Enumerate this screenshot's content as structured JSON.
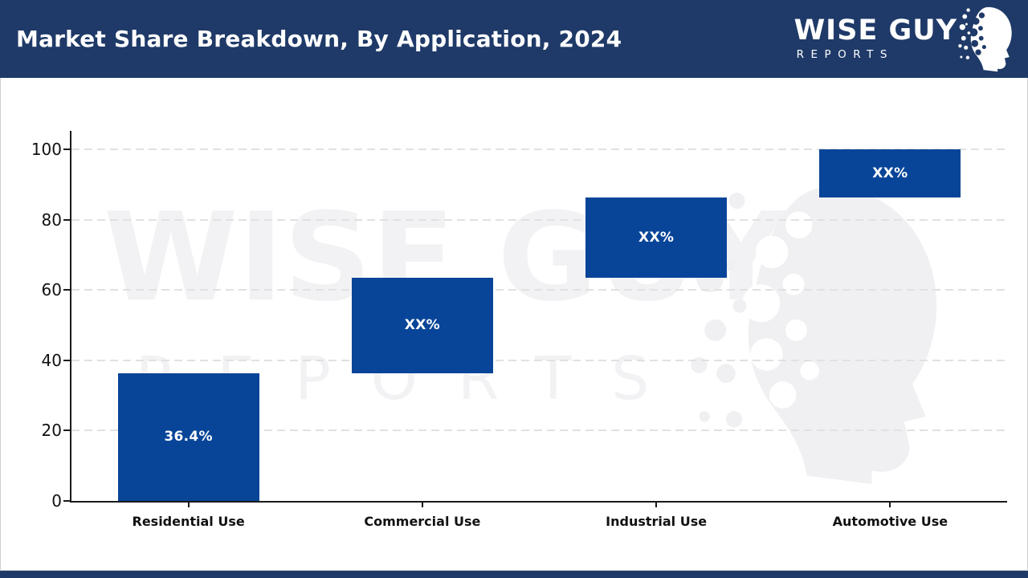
{
  "header": {
    "title": "Market Share Breakdown, By Application, 2024",
    "bg_color": "#1f3a68",
    "logo": {
      "line1": "WISE GUY",
      "line2": "REPORTS"
    }
  },
  "watermark": {
    "line1": "WISE GUY",
    "line2": "REPORTS"
  },
  "chart_data": {
    "type": "bar",
    "subtype": "waterfall-cumulative",
    "title": "Market Share Breakdown, By Application, 2024",
    "categories": [
      "Residential Use",
      "Commercial Use",
      "Industrial Use",
      "Automotive Use"
    ],
    "segments": [
      {
        "category": "Residential Use",
        "start": 0,
        "end": 36.4,
        "label": "36.4%"
      },
      {
        "category": "Commercial Use",
        "start": 36.4,
        "end": 63.4,
        "label": "XX%"
      },
      {
        "category": "Industrial Use",
        "start": 63.4,
        "end": 86.4,
        "label": "XX%"
      },
      {
        "category": "Automotive Use",
        "start": 86.4,
        "end": 100,
        "label": "XX%"
      }
    ],
    "xlabel": "",
    "ylabel": "",
    "ylim": [
      0,
      100
    ],
    "yticks": [
      0,
      20,
      40,
      60,
      80,
      100
    ],
    "grid": "horizontal-dashed",
    "legend": "none",
    "bar_color": "#084598",
    "bar_label_color": "#ffffff"
  }
}
